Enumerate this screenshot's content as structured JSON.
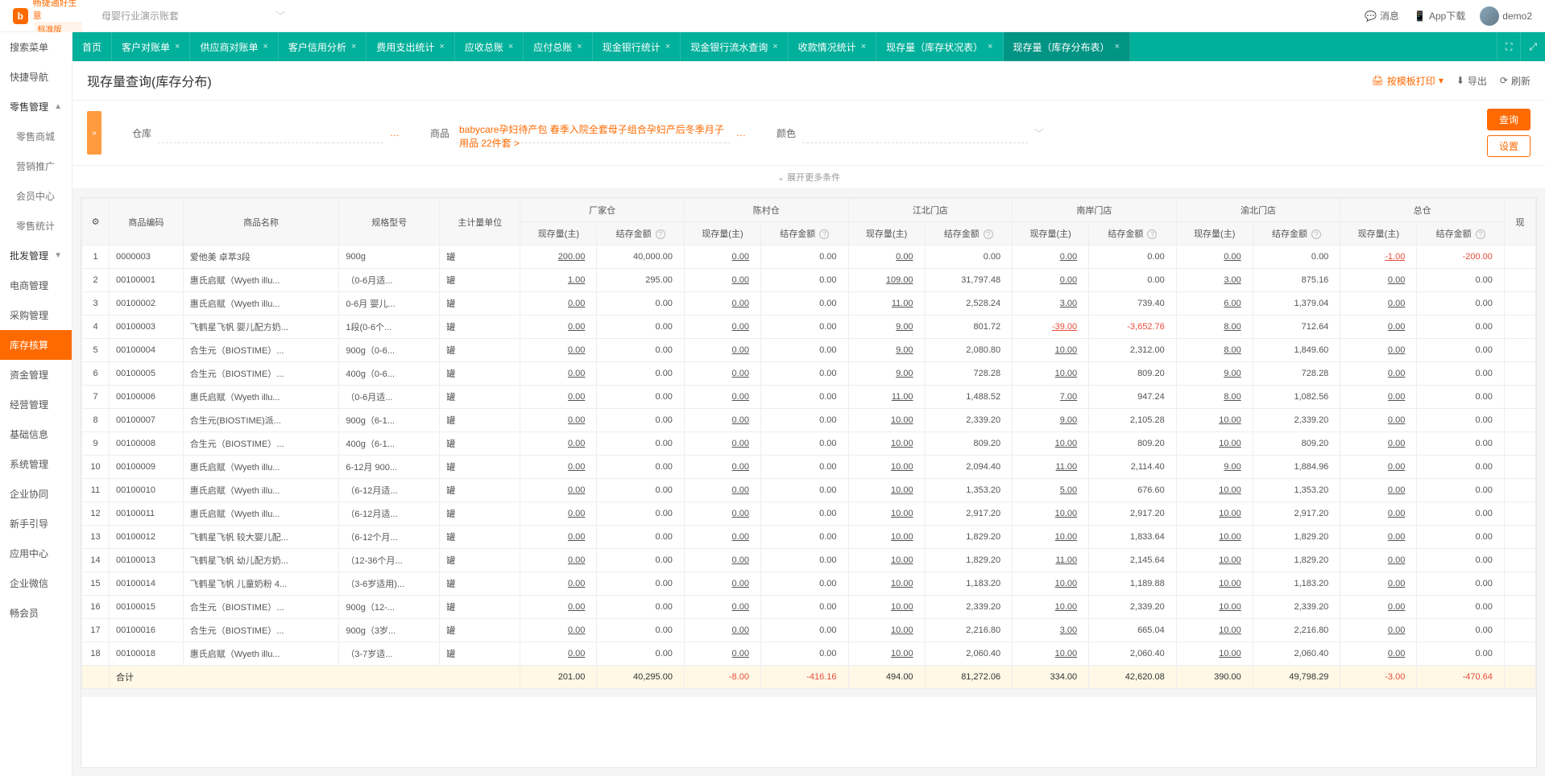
{
  "header": {
    "brand": "畅捷通好生意",
    "version": "标准版",
    "account": "母婴行业演示账套",
    "messages": "消息",
    "appDownload": "App下载",
    "user": "demo2"
  },
  "sidebar": {
    "searchMenu": "搜索菜单",
    "quickNav": "快捷导航",
    "retailMgmt": "零售管理",
    "retailMall": "零售商城",
    "marketing": "营销推广",
    "memberCenter": "会员中心",
    "retailStats": "零售统计",
    "wholesaleMgmt": "批发管理",
    "ecommerce": "电商管理",
    "purchase": "采购管理",
    "inventory": "库存核算",
    "finance": "资金管理",
    "operation": "经营管理",
    "basicInfo": "基础信息",
    "system": "系统管理",
    "enterprise": "企业协同",
    "guide": "新手引导",
    "appCenter": "应用中心",
    "wechat": "企业微信",
    "joinMember": "畅会员"
  },
  "tabs": {
    "home": "首页",
    "t1": "客户对账单",
    "t2": "供应商对账单",
    "t3": "客户信用分析",
    "t4": "费用支出统计",
    "t5": "应收总账",
    "t6": "应付总账",
    "t7": "现金银行统计",
    "t8": "现金银行流水查询",
    "t9": "收款情况统计",
    "t10": "现存量（库存状况表）",
    "t11": "现存量（库存分布表）"
  },
  "page": {
    "title": "现存量查询(库存分布)",
    "print": "按模板打印",
    "export": "导出",
    "refresh": "刷新"
  },
  "filter": {
    "warehouse": "仓库",
    "product": "商品",
    "productValue": "babycare孕妇待产包 春季入院全套母子组合孕妇产后冬季月子用品 22件套 >",
    "color": "颜色",
    "query": "查询",
    "settings": "设置",
    "expand": "展开更多条件"
  },
  "table": {
    "cols": {
      "code": "商品编码",
      "name": "商品名称",
      "spec": "规格型号",
      "unit": "主计量单位",
      "qty": "现存量(主)",
      "amt": "结存金额"
    },
    "groups": [
      "厂家仓",
      "陈村仓",
      "江北门店",
      "南岸门店",
      "渝北门店",
      "总仓"
    ],
    "extraCol": "现",
    "total": "合计",
    "rows": [
      {
        "n": 1,
        "code": "0000003",
        "name": "爱他美 卓萃3段",
        "spec": "900g",
        "unit": "罐",
        "g": [
          [
            "200.00",
            "40,000.00"
          ],
          [
            "0.00",
            "0.00"
          ],
          [
            "0.00",
            "0.00"
          ],
          [
            "0.00",
            "0.00"
          ],
          [
            "0.00",
            "0.00"
          ],
          [
            "-1.00",
            "-200.00"
          ]
        ]
      },
      {
        "n": 2,
        "code": "00100001",
        "name": "惠氏启赋（Wyeth illu...",
        "spec": "（0-6月适...",
        "unit": "罐",
        "g": [
          [
            "1.00",
            "295.00"
          ],
          [
            "0.00",
            "0.00"
          ],
          [
            "109.00",
            "31,797.48"
          ],
          [
            "0.00",
            "0.00"
          ],
          [
            "3.00",
            "875.16"
          ],
          [
            "0.00",
            "0.00"
          ]
        ]
      },
      {
        "n": 3,
        "code": "00100002",
        "name": "惠氏启赋（Wyeth illu...",
        "spec": "0-6月 婴儿...",
        "unit": "罐",
        "g": [
          [
            "0.00",
            "0.00"
          ],
          [
            "0.00",
            "0.00"
          ],
          [
            "11.00",
            "2,528.24"
          ],
          [
            "3.00",
            "739.40"
          ],
          [
            "6.00",
            "1,379.04"
          ],
          [
            "0.00",
            "0.00"
          ]
        ]
      },
      {
        "n": 4,
        "code": "00100003",
        "name": "飞鹤星飞帆 婴儿配方奶...",
        "spec": "1段(0-6个...",
        "unit": "罐",
        "g": [
          [
            "0.00",
            "0.00"
          ],
          [
            "0.00",
            "0.00"
          ],
          [
            "9.00",
            "801.72"
          ],
          [
            "-39.00",
            "-3,652.76"
          ],
          [
            "8.00",
            "712.64"
          ],
          [
            "0.00",
            "0.00"
          ]
        ]
      },
      {
        "n": 5,
        "code": "00100004",
        "name": "合生元（BIOSTIME）...",
        "spec": "900g（0-6...",
        "unit": "罐",
        "g": [
          [
            "0.00",
            "0.00"
          ],
          [
            "0.00",
            "0.00"
          ],
          [
            "9.00",
            "2,080.80"
          ],
          [
            "10.00",
            "2,312.00"
          ],
          [
            "8.00",
            "1,849.60"
          ],
          [
            "0.00",
            "0.00"
          ]
        ]
      },
      {
        "n": 6,
        "code": "00100005",
        "name": "合生元（BIOSTIME）...",
        "spec": "400g（0-6...",
        "unit": "罐",
        "g": [
          [
            "0.00",
            "0.00"
          ],
          [
            "0.00",
            "0.00"
          ],
          [
            "9.00",
            "728.28"
          ],
          [
            "10.00",
            "809.20"
          ],
          [
            "9.00",
            "728.28"
          ],
          [
            "0.00",
            "0.00"
          ]
        ]
      },
      {
        "n": 7,
        "code": "00100006",
        "name": "惠氏启赋（Wyeth illu...",
        "spec": "（0-6月适...",
        "unit": "罐",
        "g": [
          [
            "0.00",
            "0.00"
          ],
          [
            "0.00",
            "0.00"
          ],
          [
            "11.00",
            "1,488.52"
          ],
          [
            "7.00",
            "947.24"
          ],
          [
            "8.00",
            "1,082.56"
          ],
          [
            "0.00",
            "0.00"
          ]
        ]
      },
      {
        "n": 8,
        "code": "00100007",
        "name": "合生元(BIOSTIME)派...",
        "spec": "900g（6-1...",
        "unit": "罐",
        "g": [
          [
            "0.00",
            "0.00"
          ],
          [
            "0.00",
            "0.00"
          ],
          [
            "10.00",
            "2,339.20"
          ],
          [
            "9.00",
            "2,105.28"
          ],
          [
            "10.00",
            "2,339.20"
          ],
          [
            "0.00",
            "0.00"
          ]
        ]
      },
      {
        "n": 9,
        "code": "00100008",
        "name": "合生元（BIOSTIME）...",
        "spec": "400g（6-1...",
        "unit": "罐",
        "g": [
          [
            "0.00",
            "0.00"
          ],
          [
            "0.00",
            "0.00"
          ],
          [
            "10.00",
            "809.20"
          ],
          [
            "10.00",
            "809.20"
          ],
          [
            "10.00",
            "809.20"
          ],
          [
            "0.00",
            "0.00"
          ]
        ]
      },
      {
        "n": 10,
        "code": "00100009",
        "name": "惠氏启赋（Wyeth illu...",
        "spec": "6-12月 900...",
        "unit": "罐",
        "g": [
          [
            "0.00",
            "0.00"
          ],
          [
            "0.00",
            "0.00"
          ],
          [
            "10.00",
            "2,094.40"
          ],
          [
            "11.00",
            "2,114.40"
          ],
          [
            "9.00",
            "1,884.96"
          ],
          [
            "0.00",
            "0.00"
          ]
        ]
      },
      {
        "n": 11,
        "code": "00100010",
        "name": "惠氏启赋（Wyeth illu...",
        "spec": "（6-12月适...",
        "unit": "罐",
        "g": [
          [
            "0.00",
            "0.00"
          ],
          [
            "0.00",
            "0.00"
          ],
          [
            "10.00",
            "1,353.20"
          ],
          [
            "5.00",
            "676.60"
          ],
          [
            "10.00",
            "1,353.20"
          ],
          [
            "0.00",
            "0.00"
          ]
        ]
      },
      {
        "n": 12,
        "code": "00100011",
        "name": "惠氏启赋（Wyeth illu...",
        "spec": "（6-12月适...",
        "unit": "罐",
        "g": [
          [
            "0.00",
            "0.00"
          ],
          [
            "0.00",
            "0.00"
          ],
          [
            "10.00",
            "2,917.20"
          ],
          [
            "10.00",
            "2,917.20"
          ],
          [
            "10.00",
            "2,917.20"
          ],
          [
            "0.00",
            "0.00"
          ]
        ]
      },
      {
        "n": 13,
        "code": "00100012",
        "name": "飞鹤星飞帆 较大婴儿配...",
        "spec": "（6-12个月...",
        "unit": "罐",
        "g": [
          [
            "0.00",
            "0.00"
          ],
          [
            "0.00",
            "0.00"
          ],
          [
            "10.00",
            "1,829.20"
          ],
          [
            "10.00",
            "1,833.64"
          ],
          [
            "10.00",
            "1,829.20"
          ],
          [
            "0.00",
            "0.00"
          ]
        ]
      },
      {
        "n": 14,
        "code": "00100013",
        "name": "飞鹤星飞帆 幼儿配方奶...",
        "spec": "（12-36个月...",
        "unit": "罐",
        "g": [
          [
            "0.00",
            "0.00"
          ],
          [
            "0.00",
            "0.00"
          ],
          [
            "10.00",
            "1,829.20"
          ],
          [
            "11.00",
            "2,145.64"
          ],
          [
            "10.00",
            "1,829.20"
          ],
          [
            "0.00",
            "0.00"
          ]
        ]
      },
      {
        "n": 15,
        "code": "00100014",
        "name": "飞鹤星飞帆 儿童奶粉 4...",
        "spec": "（3-6岁适用)...",
        "unit": "罐",
        "g": [
          [
            "0.00",
            "0.00"
          ],
          [
            "0.00",
            "0.00"
          ],
          [
            "10.00",
            "1,183.20"
          ],
          [
            "10.00",
            "1,189.88"
          ],
          [
            "10.00",
            "1,183.20"
          ],
          [
            "0.00",
            "0.00"
          ]
        ]
      },
      {
        "n": 16,
        "code": "00100015",
        "name": "合生元（BIOSTIME）...",
        "spec": "900g（12-...",
        "unit": "罐",
        "g": [
          [
            "0.00",
            "0.00"
          ],
          [
            "0.00",
            "0.00"
          ],
          [
            "10.00",
            "2,339.20"
          ],
          [
            "10.00",
            "2,339.20"
          ],
          [
            "10.00",
            "2,339.20"
          ],
          [
            "0.00",
            "0.00"
          ]
        ]
      },
      {
        "n": 17,
        "code": "00100016",
        "name": "合生元（BIOSTIME）...",
        "spec": "900g（3岁...",
        "unit": "罐",
        "g": [
          [
            "0.00",
            "0.00"
          ],
          [
            "0.00",
            "0.00"
          ],
          [
            "10.00",
            "2,216.80"
          ],
          [
            "3.00",
            "665.04"
          ],
          [
            "10.00",
            "2,216.80"
          ],
          [
            "0.00",
            "0.00"
          ]
        ]
      },
      {
        "n": 18,
        "code": "00100018",
        "name": "惠氏启赋（Wyeth illu...",
        "spec": "（3-7岁适...",
        "unit": "罐",
        "g": [
          [
            "0.00",
            "0.00"
          ],
          [
            "0.00",
            "0.00"
          ],
          [
            "10.00",
            "2,060.40"
          ],
          [
            "10.00",
            "2,060.40"
          ],
          [
            "10.00",
            "2,060.40"
          ],
          [
            "0.00",
            "0.00"
          ]
        ]
      }
    ],
    "totals": [
      "201.00",
      "40,295.00",
      "-8.00",
      "-416.16",
      "494.00",
      "81,272.06",
      "334.00",
      "42,620.08",
      "390.00",
      "49,798.29",
      "-3.00",
      "-470.64"
    ]
  }
}
